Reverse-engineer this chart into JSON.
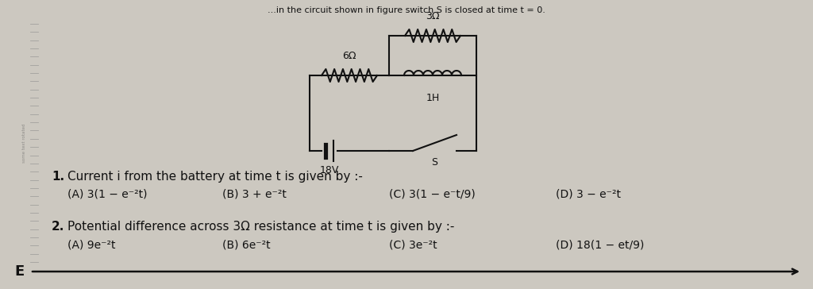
{
  "background_color": "#ccc8c0",
  "circuit": {
    "resistor_top_label": "3Ω",
    "resistor_left_label": "6Ω",
    "inductor_label": "1H",
    "battery_label": "18V",
    "switch_label": "S"
  },
  "q1_number": "1.",
  "q1_text": "Current i from the battery at time t is given by :-",
  "q1_A": "(A) 3(1 − e⁻²t)",
  "q1_B": "(B) 3 + e⁻²t",
  "q1_C": "(C) 3(1 − e⁻t/9)",
  "q1_D": "(D) 3 − e⁻²t",
  "q2_number": "2.",
  "q2_text": "Potential difference across 3Ω resistance at time t is given by :-",
  "q2_A": "(A) 9e⁻²t",
  "q2_B": "(B) 6e⁻²t",
  "q2_C": "(C) 3e⁻²t",
  "q2_D": "(D) 18(1 − et/9)",
  "footer_label": "E",
  "text_color": "#111111",
  "line_color": "#111111",
  "sidebar_color": "#888888"
}
